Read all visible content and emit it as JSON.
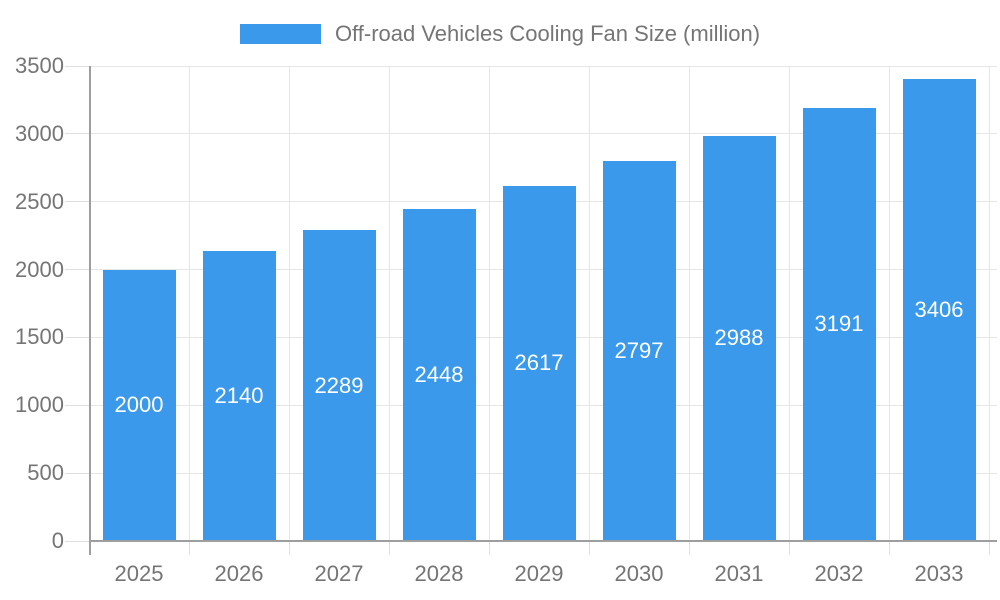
{
  "chart_data": {
    "type": "bar",
    "title": "Off-road Vehicles Cooling Fan Size (million)",
    "categories": [
      "2025",
      "2026",
      "2027",
      "2028",
      "2029",
      "2030",
      "2031",
      "2032",
      "2033"
    ],
    "series": [
      {
        "name": "Off-road Vehicles Cooling Fan Size (million)",
        "values": [
          2000,
          2140,
          2289,
          2448,
          2617,
          2797,
          2988,
          3191,
          3406
        ]
      }
    ],
    "y_ticks": [
      0,
      500,
      1000,
      1500,
      2000,
      2500,
      3000,
      3500
    ],
    "ylim": [
      0,
      3500
    ],
    "xlabel": "",
    "ylabel": "",
    "grid": true,
    "legend_position": "top",
    "value_labels_shown": true,
    "colors": {
      "bar": "#3B99EC",
      "value_label": "#FFFFFF",
      "axis_text": "#757575",
      "grid_line": "#E6E6E6",
      "axis_line": "#9E9E9E",
      "tick_line": "#E0E0E0"
    }
  }
}
